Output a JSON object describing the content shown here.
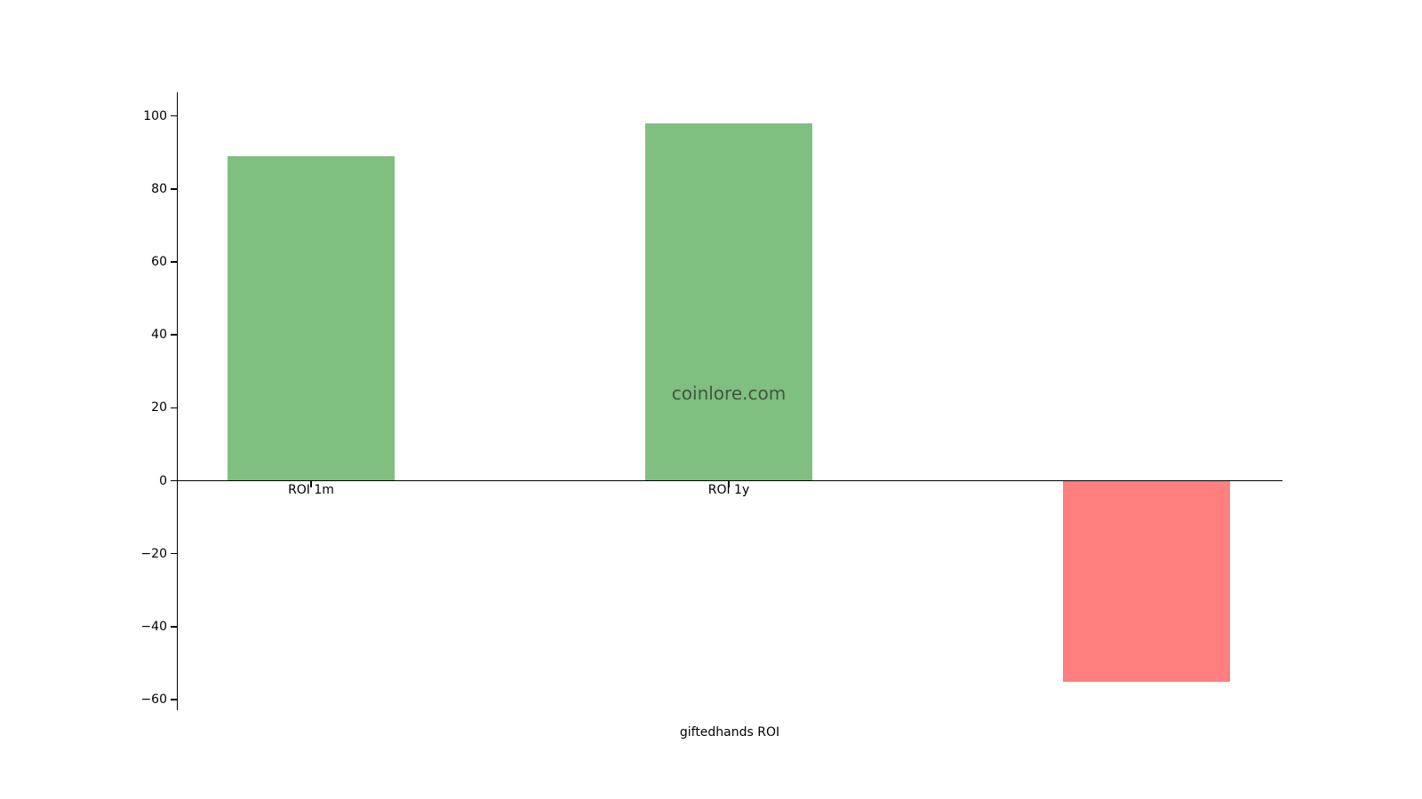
{
  "chart_data": {
    "type": "bar",
    "categories": [
      "ROI 1m",
      "ROI 1y",
      ""
    ],
    "values": [
      89,
      98,
      -55
    ],
    "bar_colors": [
      "#7fbf7f",
      "#7fbf7f",
      "#ff7f7f"
    ],
    "positive_color": "#7fbf7f",
    "negative_color": "#ff7f7f",
    "axis_color": "#000000",
    "title": "",
    "xlabel": "giftedhands ROI",
    "ylabel": "",
    "yticks": [
      100,
      80,
      60,
      40,
      20,
      0,
      -20,
      -40,
      -60
    ],
    "ylim": [
      -63,
      106.5
    ],
    "grid": false,
    "legend_position": "none",
    "watermark": "coinlore.com"
  }
}
